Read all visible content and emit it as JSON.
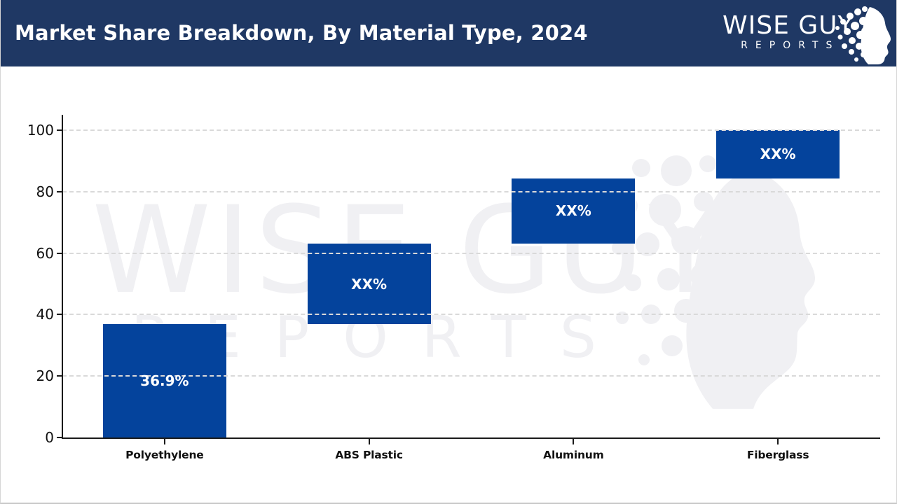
{
  "header": {
    "title": "Market Share Breakdown, By Material Type, 2024",
    "logo": {
      "wordmark": "WISE GUY",
      "subtitle": "REPORTS"
    }
  },
  "watermark": {
    "line1": "WISE GUY",
    "line2": "REPORTS"
  },
  "chart_data": {
    "type": "bar",
    "subtype": "waterfall",
    "title": "Market Share Breakdown, By Material Type, 2024",
    "categories": [
      "Polyethylene",
      "ABS Plastic",
      "Aluminum",
      "Fiberglass"
    ],
    "bars": [
      {
        "category": "Polyethylene",
        "start": 0,
        "end": 36.9,
        "label": "36.9%"
      },
      {
        "category": "ABS Plastic",
        "start": 36.9,
        "end": 63.1,
        "label": "XX%"
      },
      {
        "category": "Aluminum",
        "start": 63.1,
        "end": 84.3,
        "label": "XX%"
      },
      {
        "category": "Fiberglass",
        "start": 84.3,
        "end": 100,
        "label": "XX%"
      }
    ],
    "yticks": [
      0,
      20,
      40,
      60,
      80,
      100
    ],
    "ylim": [
      0,
      105
    ],
    "xlabel": "",
    "ylabel": "",
    "grid": "horizontal-dashed",
    "legend": "none",
    "bar_color": "#04439C",
    "bar_label_color": "#ffffff"
  },
  "colors": {
    "header_bg": "#1F3864",
    "bar_blue": "#04439C",
    "axis": "#1a1a1a",
    "gridline": "#d9d9d9",
    "watermark": "#f0f0f3",
    "logo_white": "#ffffff"
  }
}
